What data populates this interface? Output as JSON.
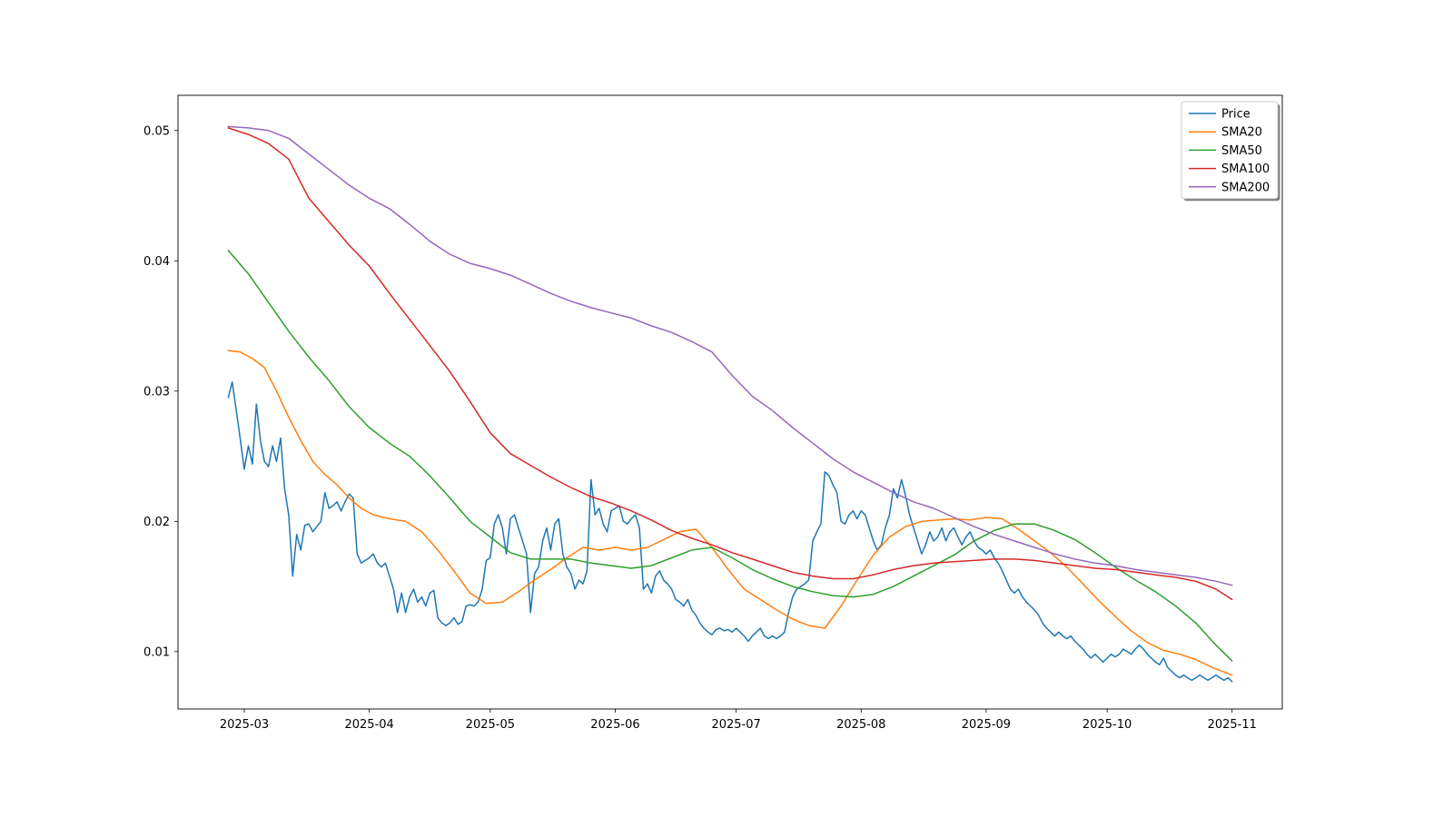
{
  "figure": {
    "background": "#ffffff",
    "axes_edge_color": "#000000"
  },
  "chart_data": {
    "type": "line",
    "title": "",
    "xlabel": "",
    "ylabel": "",
    "grid": false,
    "x_unit": "days since 2025-02-25",
    "xlim": [
      -12.45,
      261.45
    ],
    "ylim": [
      0.0056,
      0.0527
    ],
    "x_ticks": [
      {
        "day": 4,
        "label": "2025-03"
      },
      {
        "day": 35,
        "label": "2025-04"
      },
      {
        "day": 65,
        "label": "2025-05"
      },
      {
        "day": 96,
        "label": "2025-06"
      },
      {
        "day": 126,
        "label": "2025-07"
      },
      {
        "day": 157,
        "label": "2025-08"
      },
      {
        "day": 188,
        "label": "2025-09"
      },
      {
        "day": 218,
        "label": "2025-10"
      },
      {
        "day": 249,
        "label": "2025-11"
      }
    ],
    "y_ticks": [
      {
        "value": 0.01,
        "label": "0.01"
      },
      {
        "value": 0.02,
        "label": "0.02"
      },
      {
        "value": 0.03,
        "label": "0.03"
      },
      {
        "value": 0.04,
        "label": "0.04"
      },
      {
        "value": 0.05,
        "label": "0.05"
      }
    ],
    "legend": {
      "position": "upper right",
      "entries": [
        "Price",
        "SMA20",
        "SMA50",
        "SMA100",
        "SMA200"
      ]
    },
    "series": [
      {
        "name": "Price",
        "color": "#1f77b4",
        "x_start": 0,
        "x_step": 1,
        "y": [
          0.0295,
          0.0307,
          0.0285,
          0.0263,
          0.024,
          0.0258,
          0.0244,
          0.029,
          0.0262,
          0.0246,
          0.0242,
          0.0258,
          0.0246,
          0.0264,
          0.0225,
          0.0205,
          0.0158,
          0.019,
          0.0178,
          0.0197,
          0.0198,
          0.0192,
          0.0196,
          0.02,
          0.0222,
          0.021,
          0.0212,
          0.0215,
          0.0208,
          0.0215,
          0.0221,
          0.0218,
          0.0175,
          0.0168,
          0.017,
          0.0172,
          0.0175,
          0.0168,
          0.0165,
          0.0168,
          0.0158,
          0.0148,
          0.013,
          0.0145,
          0.013,
          0.0142,
          0.0148,
          0.0138,
          0.0142,
          0.0135,
          0.0145,
          0.0147,
          0.0126,
          0.0122,
          0.012,
          0.0122,
          0.0126,
          0.0121,
          0.0123,
          0.0135,
          0.0136,
          0.0135,
          0.0138,
          0.0148,
          0.017,
          0.0172,
          0.0198,
          0.0205,
          0.0195,
          0.0175,
          0.0202,
          0.0205,
          0.0195,
          0.0185,
          0.0175,
          0.013,
          0.016,
          0.0165,
          0.0185,
          0.0195,
          0.0178,
          0.0198,
          0.0202,
          0.0175,
          0.0165,
          0.016,
          0.0148,
          0.0155,
          0.0152,
          0.0162,
          0.0232,
          0.0205,
          0.021,
          0.0198,
          0.0192,
          0.0208,
          0.021,
          0.0212,
          0.02,
          0.0198,
          0.0202,
          0.0205,
          0.0195,
          0.0148,
          0.0152,
          0.0145,
          0.0158,
          0.0162,
          0.0155,
          0.0152,
          0.0148,
          0.014,
          0.0138,
          0.0135,
          0.014,
          0.0132,
          0.0128,
          0.0122,
          0.0118,
          0.0115,
          0.0113,
          0.0117,
          0.0118,
          0.0116,
          0.0117,
          0.0115,
          0.0118,
          0.0115,
          0.0112,
          0.0108,
          0.0112,
          0.0115,
          0.0118,
          0.0112,
          0.011,
          0.0112,
          0.011,
          0.0112,
          0.0115,
          0.013,
          0.0142,
          0.0148,
          0.015,
          0.0152,
          0.0155,
          0.0185,
          0.0192,
          0.0198,
          0.0238,
          0.0235,
          0.0228,
          0.0222,
          0.02,
          0.0198,
          0.0205,
          0.0208,
          0.0202,
          0.0208,
          0.0205,
          0.0195,
          0.0185,
          0.0178,
          0.0182,
          0.0195,
          0.0205,
          0.0225,
          0.0218,
          0.0232,
          0.022,
          0.0205,
          0.0195,
          0.0185,
          0.0175,
          0.0182,
          0.0192,
          0.0185,
          0.0188,
          0.0195,
          0.0185,
          0.0192,
          0.0195,
          0.0188,
          0.0182,
          0.0188,
          0.0192,
          0.0185,
          0.018,
          0.0178,
          0.0175,
          0.0178,
          0.0172,
          0.0168,
          0.0162,
          0.0155,
          0.0148,
          0.0145,
          0.0148,
          0.0142,
          0.0138,
          0.0135,
          0.0132,
          0.0128,
          0.0122,
          0.0118,
          0.0115,
          0.0112,
          0.0115,
          0.0112,
          0.011,
          0.0112,
          0.0108,
          0.0105,
          0.0102,
          0.0098,
          0.0095,
          0.0098,
          0.0095,
          0.0092,
          0.0095,
          0.0098,
          0.0096,
          0.0098,
          0.0102,
          0.01,
          0.0098,
          0.0102,
          0.0105,
          0.0102,
          0.0098,
          0.0095,
          0.0092,
          0.009,
          0.0095,
          0.0088,
          0.0085,
          0.0082,
          0.008,
          0.0082,
          0.008,
          0.0078,
          0.008,
          0.0082,
          0.008,
          0.0078,
          0.008,
          0.0082,
          0.008,
          0.0078,
          0.008,
          0.0077
        ]
      },
      {
        "name": "SMA20",
        "color": "#ff7f0e",
        "x": [
          0,
          3,
          6,
          9,
          12,
          15,
          18,
          21,
          24,
          27,
          30,
          33,
          36,
          40,
          44,
          48,
          52,
          56,
          60,
          64,
          68,
          72,
          76,
          80,
          84,
          88,
          92,
          96,
          100,
          104,
          108,
          112,
          116,
          120,
          124,
          128,
          132,
          136,
          140,
          144,
          148,
          152,
          156,
          160,
          164,
          168,
          172,
          176,
          180,
          184,
          188,
          192,
          196,
          200,
          204,
          208,
          212,
          216,
          220,
          224,
          228,
          232,
          236,
          240,
          244,
          249
        ],
        "y": [
          0.0331,
          0.033,
          0.0325,
          0.0318,
          0.03,
          0.028,
          0.0262,
          0.0246,
          0.0236,
          0.0228,
          0.0218,
          0.021,
          0.0205,
          0.0202,
          0.02,
          0.0192,
          0.0178,
          0.0162,
          0.0145,
          0.0137,
          0.0138,
          0.0146,
          0.0155,
          0.0163,
          0.0172,
          0.018,
          0.0178,
          0.018,
          0.0178,
          0.018,
          0.0186,
          0.0192,
          0.0194,
          0.018,
          0.0163,
          0.0148,
          0.014,
          0.0132,
          0.0125,
          0.012,
          0.0118,
          0.0135,
          0.0155,
          0.0174,
          0.0188,
          0.0196,
          0.02,
          0.0201,
          0.0202,
          0.0201,
          0.0203,
          0.0202,
          0.0194,
          0.0185,
          0.0176,
          0.0165,
          0.0152,
          0.0139,
          0.0127,
          0.0116,
          0.0107,
          0.0101,
          0.0098,
          0.0094,
          0.0088,
          0.0082
        ]
      },
      {
        "name": "SMA50",
        "color": "#2ca02c",
        "x": [
          0,
          5,
          10,
          15,
          20,
          25,
          30,
          35,
          40,
          45,
          50,
          55,
          60,
          65,
          70,
          75,
          80,
          85,
          90,
          95,
          100,
          105,
          110,
          115,
          120,
          125,
          130,
          135,
          140,
          145,
          150,
          155,
          160,
          165,
          170,
          175,
          180,
          185,
          190,
          195,
          200,
          205,
          210,
          215,
          220,
          225,
          230,
          235,
          240,
          245,
          249
        ],
        "y": [
          0.0408,
          0.039,
          0.0368,
          0.0346,
          0.0326,
          0.0308,
          0.0288,
          0.0272,
          0.026,
          0.025,
          0.0235,
          0.0218,
          0.02,
          0.0188,
          0.0176,
          0.0171,
          0.0171,
          0.0171,
          0.0168,
          0.0166,
          0.0164,
          0.0166,
          0.0172,
          0.0178,
          0.018,
          0.0172,
          0.0163,
          0.0156,
          0.015,
          0.0146,
          0.0143,
          0.0142,
          0.0144,
          0.015,
          0.0158,
          0.0166,
          0.0174,
          0.0185,
          0.0193,
          0.0198,
          0.0198,
          0.0193,
          0.0186,
          0.0176,
          0.0165,
          0.0155,
          0.0146,
          0.0135,
          0.0122,
          0.0105,
          0.0093
        ]
      },
      {
        "name": "SMA100",
        "color": "#d62728",
        "x": [
          0,
          5,
          10,
          15,
          20,
          25,
          30,
          35,
          40,
          45,
          50,
          55,
          60,
          65,
          70,
          75,
          80,
          85,
          90,
          95,
          100,
          105,
          110,
          115,
          120,
          125,
          130,
          135,
          140,
          145,
          150,
          155,
          160,
          165,
          170,
          175,
          180,
          185,
          190,
          195,
          200,
          205,
          210,
          215,
          220,
          225,
          230,
          235,
          240,
          245,
          249
        ],
        "y": [
          0.0502,
          0.0497,
          0.049,
          0.0478,
          0.0448,
          0.043,
          0.0412,
          0.0396,
          0.0375,
          0.0355,
          0.0335,
          0.0315,
          0.0292,
          0.0268,
          0.0252,
          0.0243,
          0.0234,
          0.0226,
          0.0219,
          0.0214,
          0.0208,
          0.0201,
          0.0193,
          0.0187,
          0.0182,
          0.0176,
          0.0171,
          0.0166,
          0.0161,
          0.0158,
          0.0156,
          0.0156,
          0.0159,
          0.0163,
          0.0166,
          0.0168,
          0.0169,
          0.017,
          0.0171,
          0.0171,
          0.017,
          0.0168,
          0.0166,
          0.0164,
          0.0163,
          0.0161,
          0.0159,
          0.0157,
          0.0154,
          0.0148,
          0.014
        ]
      },
      {
        "name": "SMA200",
        "color": "#9467bd",
        "x": [
          0,
          5,
          10,
          15,
          20,
          25,
          30,
          35,
          40,
          45,
          50,
          55,
          60,
          65,
          70,
          75,
          80,
          85,
          90,
          95,
          100,
          105,
          110,
          115,
          120,
          125,
          130,
          135,
          140,
          145,
          150,
          155,
          160,
          165,
          170,
          175,
          180,
          185,
          190,
          195,
          200,
          205,
          210,
          215,
          220,
          225,
          230,
          235,
          240,
          245,
          249
        ],
        "y": [
          0.0503,
          0.0502,
          0.05,
          0.0494,
          0.0482,
          0.047,
          0.0458,
          0.0448,
          0.044,
          0.0428,
          0.0415,
          0.0405,
          0.0398,
          0.0394,
          0.0389,
          0.0382,
          0.0375,
          0.0369,
          0.0364,
          0.036,
          0.0356,
          0.035,
          0.0345,
          0.0338,
          0.033,
          0.0312,
          0.0296,
          0.0285,
          0.0272,
          0.026,
          0.0248,
          0.0238,
          0.023,
          0.0222,
          0.0215,
          0.021,
          0.0203,
          0.0196,
          0.019,
          0.0185,
          0.018,
          0.0175,
          0.0171,
          0.0168,
          0.0166,
          0.0163,
          0.0161,
          0.0159,
          0.0157,
          0.0154,
          0.0151
        ]
      }
    ]
  }
}
